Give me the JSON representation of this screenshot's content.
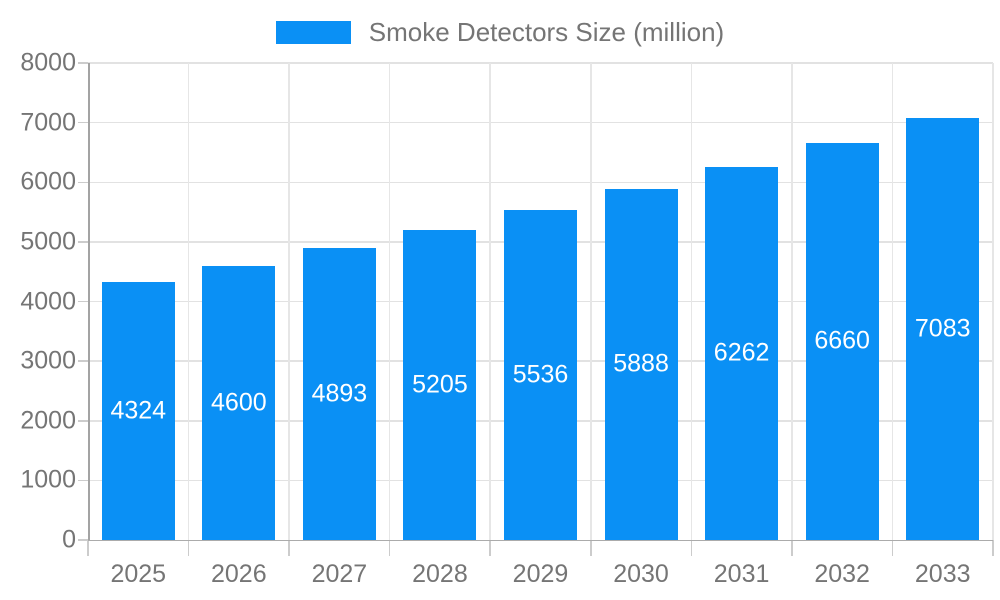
{
  "page": {
    "background_color": "#ffffff"
  },
  "legend": {
    "label": "Smoke Detectors Size (million)",
    "swatch_color": "#0a90f5",
    "position": "top-center"
  },
  "chart_data": {
    "type": "bar",
    "title": "Smoke Detectors Size (million)",
    "series_name": "Smoke Detectors Size (million)",
    "categories": [
      "2025",
      "2026",
      "2027",
      "2028",
      "2029",
      "2030",
      "2031",
      "2032",
      "2033"
    ],
    "values": [
      4324,
      4600,
      4893,
      5205,
      5536,
      5888,
      6262,
      6660,
      7083
    ],
    "xlabel": "",
    "ylabel": "",
    "ylim": [
      0,
      8000
    ],
    "yticks": [
      0,
      1000,
      2000,
      3000,
      4000,
      5000,
      6000,
      7000,
      8000
    ],
    "grid": true,
    "legend_position": "top-center",
    "bar_color": "#0a90f5",
    "value_label_color": "#ffffff",
    "axis_label_color": "#757575",
    "grid_color": "#e2e2e2",
    "axis_line_color": "#a3a3a3"
  }
}
